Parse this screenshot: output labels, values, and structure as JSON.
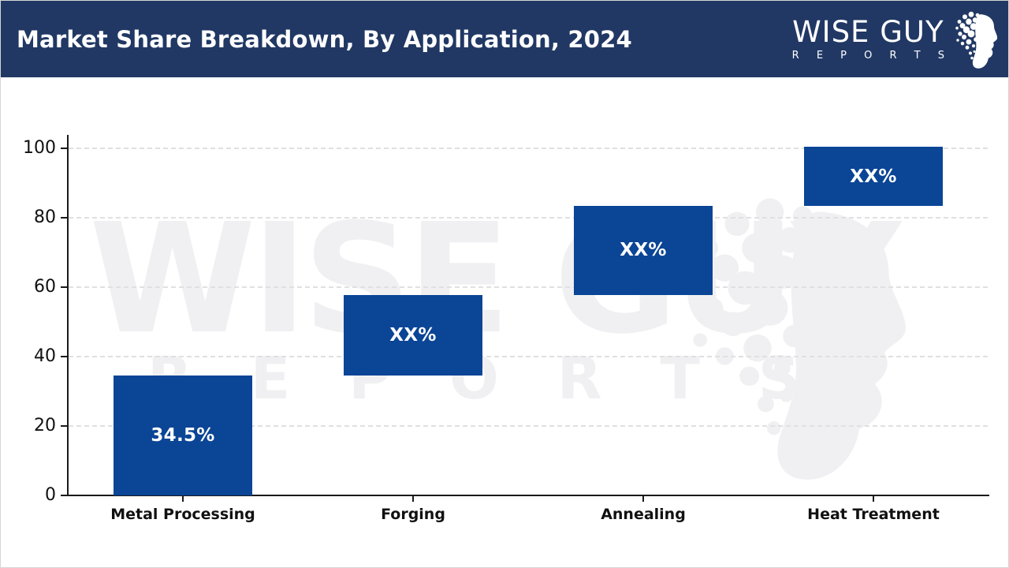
{
  "header": {
    "title": "Market Share Breakdown, By Application, 2024",
    "logo": {
      "line1": "WISE GUY",
      "line2": "R E P O R T S"
    }
  },
  "watermark": {
    "line1": "WISE GUY",
    "line2": "R E P O R T S"
  },
  "colors": {
    "header_bg": "#213864",
    "bar": "#0a4596",
    "bar_label": "#ffffff",
    "axis": "#1a1a1a",
    "grid": "#e0e0e0",
    "watermark": "#f0f0f2",
    "title_text": "#ffffff"
  },
  "chart_data": {
    "type": "bar",
    "variant": "floating-waterfall",
    "title": "Market Share Breakdown, By Application, 2024",
    "categories": [
      "Metal Processing",
      "Forging",
      "Annealing",
      "Heat Treatment"
    ],
    "segments": [
      {
        "category": "Metal Processing",
        "start": 0,
        "end": 34.5,
        "label": "34.5%"
      },
      {
        "category": "Forging",
        "start": 34.5,
        "end": 57.8,
        "label": "XX%"
      },
      {
        "category": "Annealing",
        "start": 57.8,
        "end": 83.4,
        "label": "XX%"
      },
      {
        "category": "Heat Treatment",
        "start": 83.4,
        "end": 100.4,
        "label": "XX%"
      }
    ],
    "ylim": [
      0,
      100
    ],
    "yticks": [
      0,
      20,
      40,
      60,
      80,
      100
    ],
    "xlabel": "",
    "ylabel": "",
    "grid": "horizontal-dashed",
    "legend": "none"
  }
}
